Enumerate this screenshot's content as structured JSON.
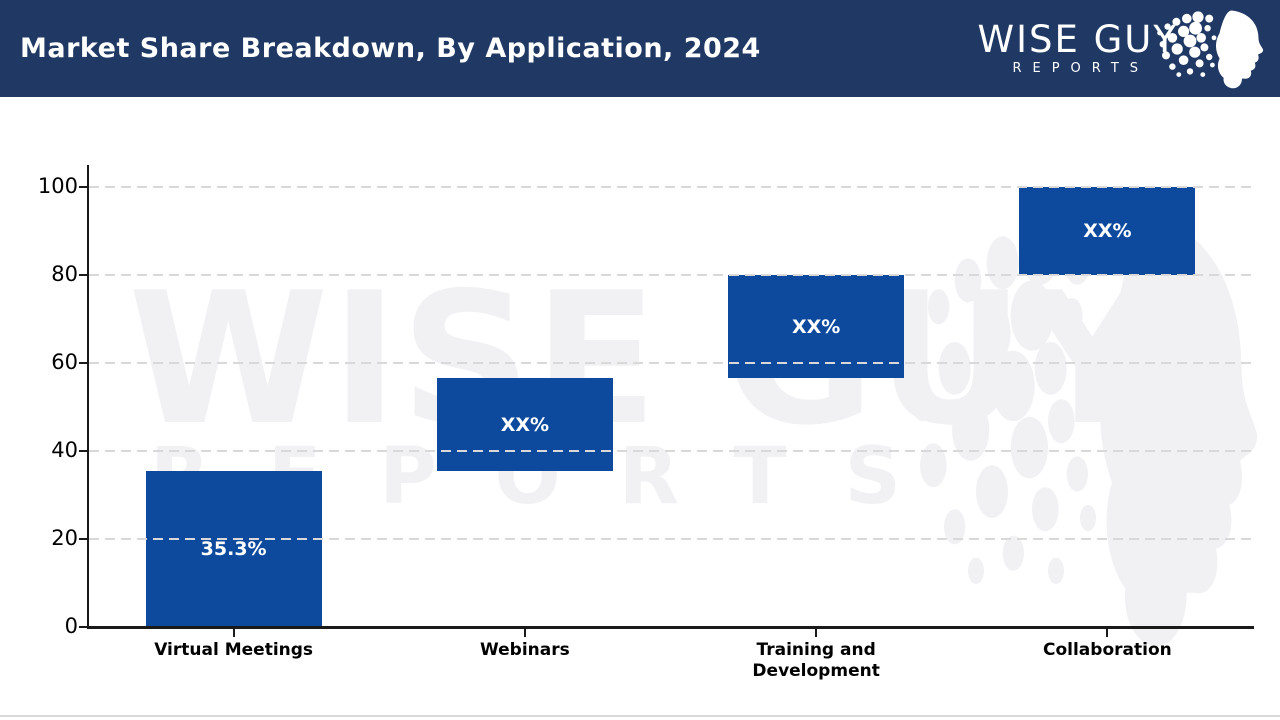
{
  "header": {
    "title": "Market Share Breakdown, By Application, 2024",
    "bg_color": "#1f3864",
    "logo": {
      "line1": "WISE GUY",
      "line2": "REPORTS"
    }
  },
  "watermark": {
    "line1": "WISE GUY",
    "line2": "REPORTS"
  },
  "chart_data": {
    "type": "bar",
    "subtype": "waterfall-floating-bars",
    "title": "Market Share Breakdown, By Application, 2024",
    "categories": [
      "Virtual Meetings",
      "Webinars",
      "Training and Development",
      "Collaboration"
    ],
    "segments": [
      [
        0,
        35.3
      ],
      [
        35.3,
        56.5
      ],
      [
        56.5,
        80
      ],
      [
        80,
        100
      ]
    ],
    "values": [
      35.3,
      21.2,
      23.5,
      20
    ],
    "labels": [
      "35.3%",
      "XX%",
      "XX%",
      "XX%"
    ],
    "xlabel": "",
    "ylabel": "",
    "ylim": [
      0,
      105
    ],
    "yticks": [
      0,
      20,
      40,
      60,
      80,
      100
    ],
    "grid": "horizontal-dashed",
    "legend": "none",
    "bar_color": "#0d4a9e",
    "bar_label_color": "#ffffff",
    "axis_color": "#1a1a1a",
    "grid_color": "#d9d9d9"
  }
}
